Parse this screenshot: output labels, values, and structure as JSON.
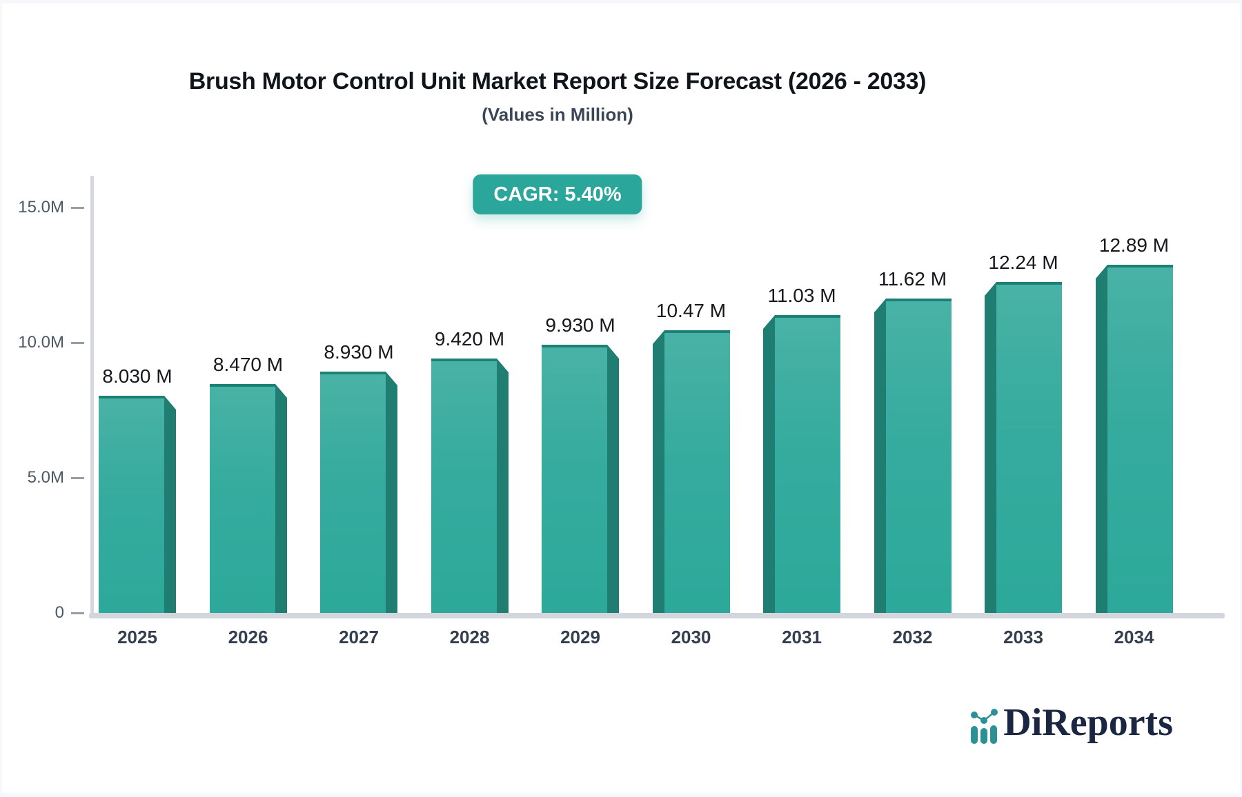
{
  "header": {
    "title": "Brush Motor Control Unit Market Report Size Forecast (2026 - 2033)",
    "subtitle": "(Values in Million)",
    "badge": "CAGR: 5.40%"
  },
  "chart_data": {
    "type": "bar",
    "title": "Brush Motor Control Unit Market Report Size Forecast (2026 - 2033)",
    "subtitle": "(Values in Million)",
    "unit": "Million",
    "categories": [
      "2025",
      "2026",
      "2027",
      "2028",
      "2029",
      "2030",
      "2031",
      "2032",
      "2033",
      "2034"
    ],
    "values": [
      8.03,
      8.47,
      8.93,
      9.42,
      9.93,
      10.47,
      11.03,
      11.62,
      12.24,
      12.89
    ],
    "value_labels": [
      "8.030 M",
      "8.470 M",
      "8.930 M",
      "9.420 M",
      "9.930 M",
      "10.47 M",
      "11.03 M",
      "11.62 M",
      "12.24 M",
      "12.89 M"
    ],
    "cagr": "5.40%",
    "ylim": [
      0,
      15
    ],
    "yticks": [
      {
        "value": 15,
        "label": "15.0M"
      },
      {
        "value": 10,
        "label": "10.0M"
      },
      {
        "value": 5,
        "label": "5.0M"
      },
      {
        "value": 0,
        "label": "0"
      }
    ],
    "grid": false,
    "legend": "none",
    "colors": {
      "bar_face_top": "#49b2a6",
      "bar_face_bottom": "#2ca99a",
      "bar_top_edge": "#1c8175",
      "bar_side": "#1f7e71",
      "axis": "#d5d9df",
      "accent": "#2aa69b"
    }
  },
  "logo": {
    "text": "DiReports",
    "mark": "mini-bar-trend-icon",
    "teal": "#2b9196",
    "navy": "#1a2642"
  }
}
